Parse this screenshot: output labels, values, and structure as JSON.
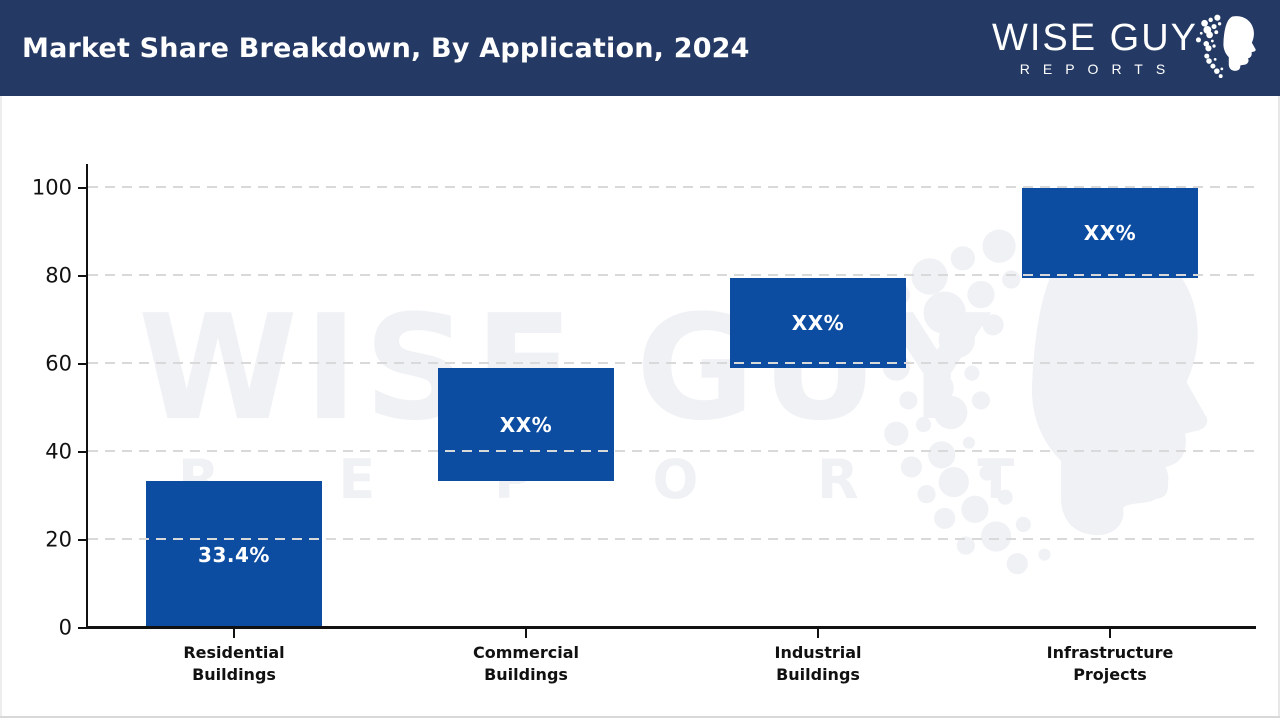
{
  "header": {
    "title": "Market Share Breakdown, By Application, 2024",
    "logo": {
      "primary": "WISE GUY",
      "secondary": "REPORTS"
    }
  },
  "watermark": {
    "primary": "WISE GUY",
    "secondary": "R E P O R T S"
  },
  "colors": {
    "header_bg": "#243a64",
    "bar": "#0c4ca1",
    "bar_label": "#ffffff",
    "axis": "#111111",
    "text": "#111111",
    "gridline": "#d9d9d9",
    "watermark": "#eff1f5",
    "background": "#ffffff"
  },
  "chart_data": {
    "type": "bar",
    "subtype": "waterfall (stacked market-share breakdown, floating segments)",
    "title": "Market Share Breakdown, By Application, 2024",
    "categories": [
      "Residential Buildings",
      "Commercial Buildings",
      "Industrial Buildings",
      "Infrastructure Projects"
    ],
    "category_lines": [
      [
        "Residential",
        "Buildings"
      ],
      [
        "Commercial",
        "Buildings"
      ],
      [
        "Industrial",
        "Buildings"
      ],
      [
        "Infrastructure",
        "Projects"
      ]
    ],
    "segments": [
      {
        "category": "Residential Buildings",
        "start": 0,
        "end": 33.4,
        "value": 33.4,
        "label": "33.4%"
      },
      {
        "category": "Commercial Buildings",
        "start": 33.4,
        "end": 59.0,
        "value": 25.6,
        "label": "XX%"
      },
      {
        "category": "Industrial Buildings",
        "start": 59.0,
        "end": 79.6,
        "value": 20.6,
        "label": "XX%"
      },
      {
        "category": "Infrastructure Projects",
        "start": 79.6,
        "end": 100,
        "value": 20.4,
        "label": "XX%"
      }
    ],
    "y_ticks": [
      0,
      20,
      40,
      60,
      80,
      100
    ],
    "ylim": [
      0,
      100
    ],
    "xlabel": "",
    "ylabel": "",
    "grid": "horizontal dashed",
    "legend": "none"
  }
}
